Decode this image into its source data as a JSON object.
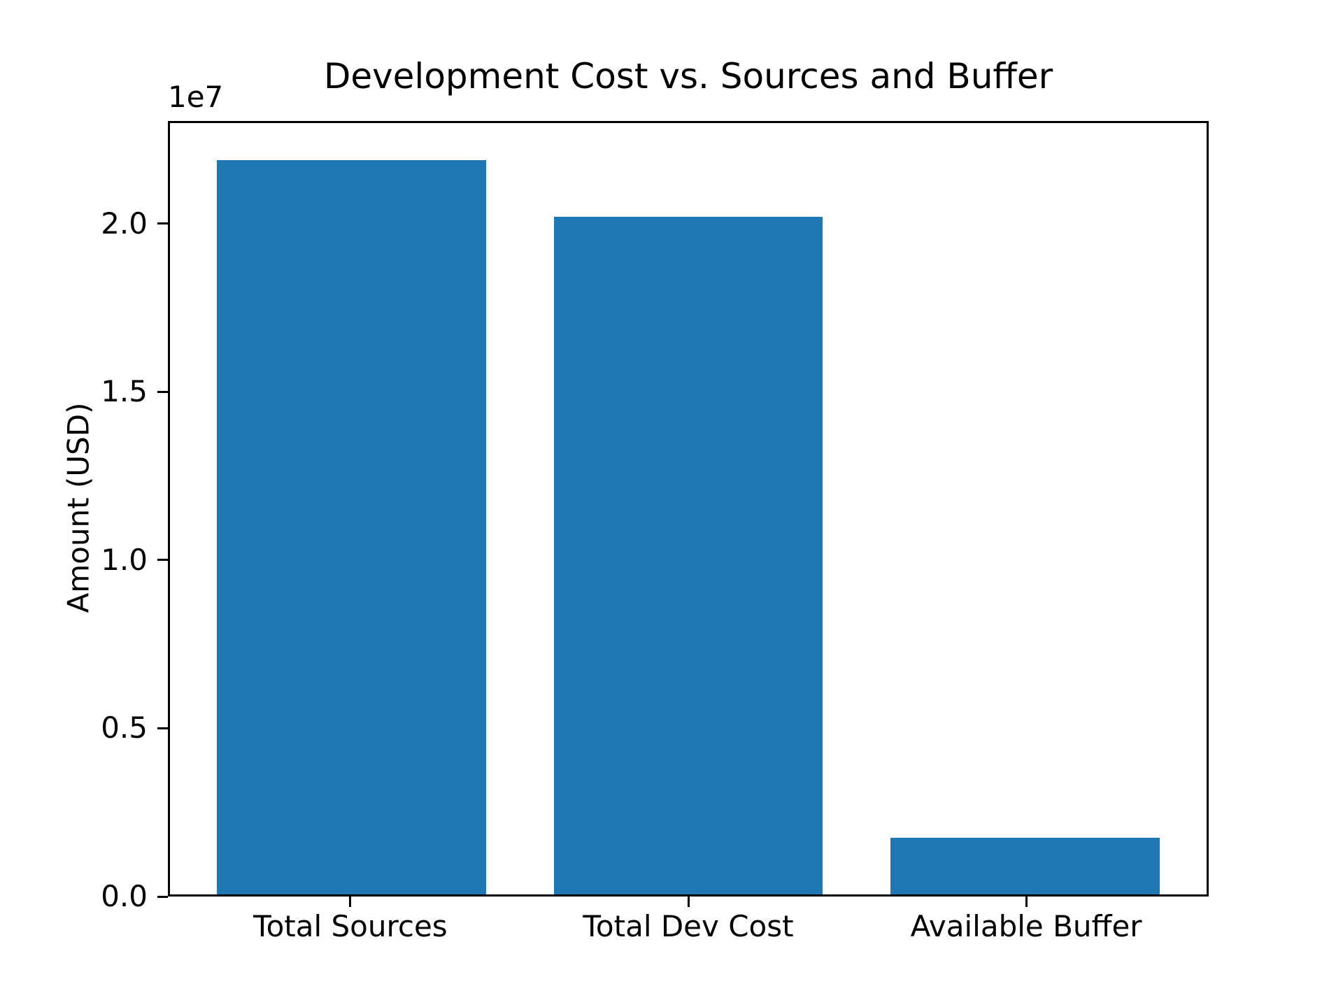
{
  "figure": {
    "background": "#ffffff"
  },
  "chart_data": {
    "type": "bar",
    "title": "Development Cost vs. Sources and Buffer",
    "categories": [
      "Total Sources",
      "Total Dev Cost",
      "Available Buffer"
    ],
    "values": [
      21950000,
      20250000,
      1700000
    ],
    "xlabel": "",
    "ylabel": "Amount (USD)",
    "ylim": [
      0,
      23047500
    ],
    "yticks": [
      0,
      5000000,
      10000000,
      15000000,
      20000000
    ],
    "ytick_labels": [
      "0.0",
      "0.5",
      "1.0",
      "1.5",
      "2.0"
    ],
    "offset_text": "1e7",
    "bar_color": "#1f77b4",
    "bar_width_units": 0.8,
    "grid": false,
    "legend": null,
    "spine_color": "#000000",
    "text_color": "#000000"
  }
}
